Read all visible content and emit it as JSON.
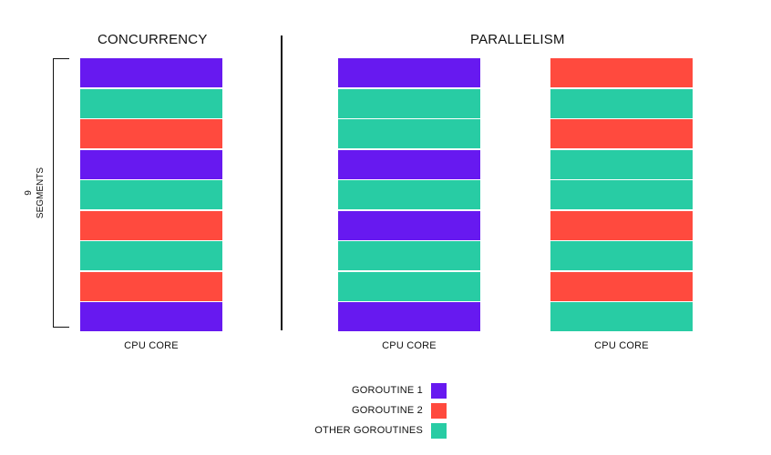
{
  "colors": {
    "goroutine_1": "#6719f0",
    "goroutine_2": "#ff4a3e",
    "other_goroutines": "#28cca4"
  },
  "concurrency": {
    "title": "CONCURRENCY",
    "segments_label_count": "9",
    "segments_label_word": "SEGMENTS",
    "core": {
      "label": "CPU CORE",
      "segments": [
        "goroutine_1",
        "other_goroutines",
        "goroutine_2",
        "goroutine_1",
        "other_goroutines",
        "goroutine_2",
        "other_goroutines",
        "goroutine_2",
        "goroutine_1"
      ]
    }
  },
  "parallelism": {
    "title": "PARALLELISM",
    "cores": [
      {
        "label": "CPU CORE",
        "segments": [
          "goroutine_1",
          "other_goroutines",
          "other_goroutines",
          "goroutine_1",
          "other_goroutines",
          "goroutine_1",
          "other_goroutines",
          "other_goroutines",
          "goroutine_1"
        ]
      },
      {
        "label": "CPU CORE",
        "segments": [
          "goroutine_2",
          "other_goroutines",
          "goroutine_2",
          "other_goroutines",
          "other_goroutines",
          "goroutine_2",
          "other_goroutines",
          "goroutine_2",
          "other_goroutines"
        ]
      }
    ]
  },
  "legend": [
    {
      "label": "GOROUTINE 1",
      "color_key": "goroutine_1"
    },
    {
      "label": "GOROUTINE 2",
      "color_key": "goroutine_2"
    },
    {
      "label": "OTHER GOROUTINES",
      "color_key": "other_goroutines"
    }
  ]
}
